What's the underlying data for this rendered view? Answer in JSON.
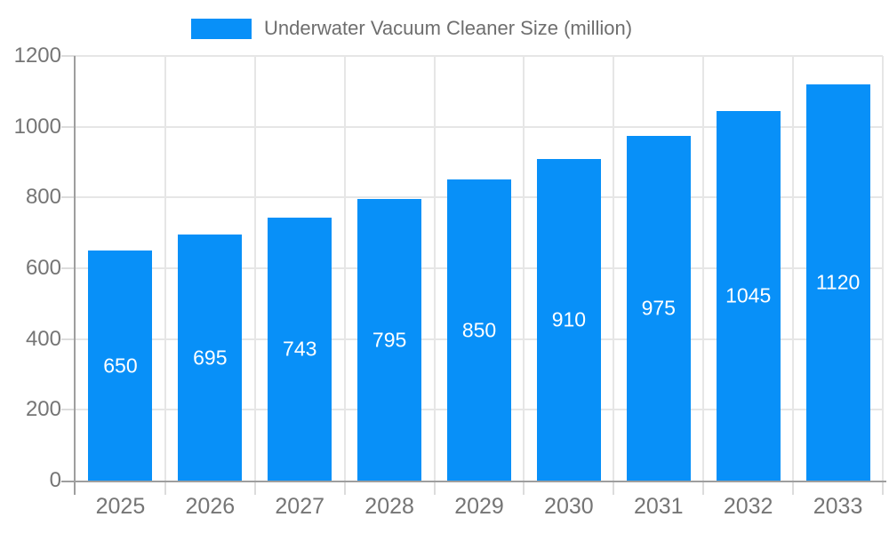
{
  "chart_data": {
    "type": "bar",
    "title": "Underwater Vacuum Cleaner Size (million)",
    "legend_label": "Underwater Vacuum Cleaner Size (million)",
    "legend_position": "top",
    "categories": [
      "2025",
      "2026",
      "2027",
      "2028",
      "2029",
      "2030",
      "2031",
      "2032",
      "2033"
    ],
    "values": [
      650,
      695,
      743,
      795,
      850,
      910,
      975,
      1045,
      1120
    ],
    "xlabel": "",
    "ylabel": "",
    "ylim": [
      0,
      1200
    ],
    "ytick_step": 200,
    "ytick_labels": [
      "0",
      "200",
      "400",
      "600",
      "800",
      "1000",
      "1200"
    ],
    "grid": true,
    "value_labels_shown": true,
    "colors": {
      "bar": "#0890f8",
      "bar_value_label": "#ffffff",
      "grid": "#e6e6e6",
      "tick": "#dcdcdc",
      "axis": "#9e9e9e",
      "axis_label": "#757575",
      "legend_text": "#6e6e6e",
      "background": "#ffffff"
    }
  }
}
